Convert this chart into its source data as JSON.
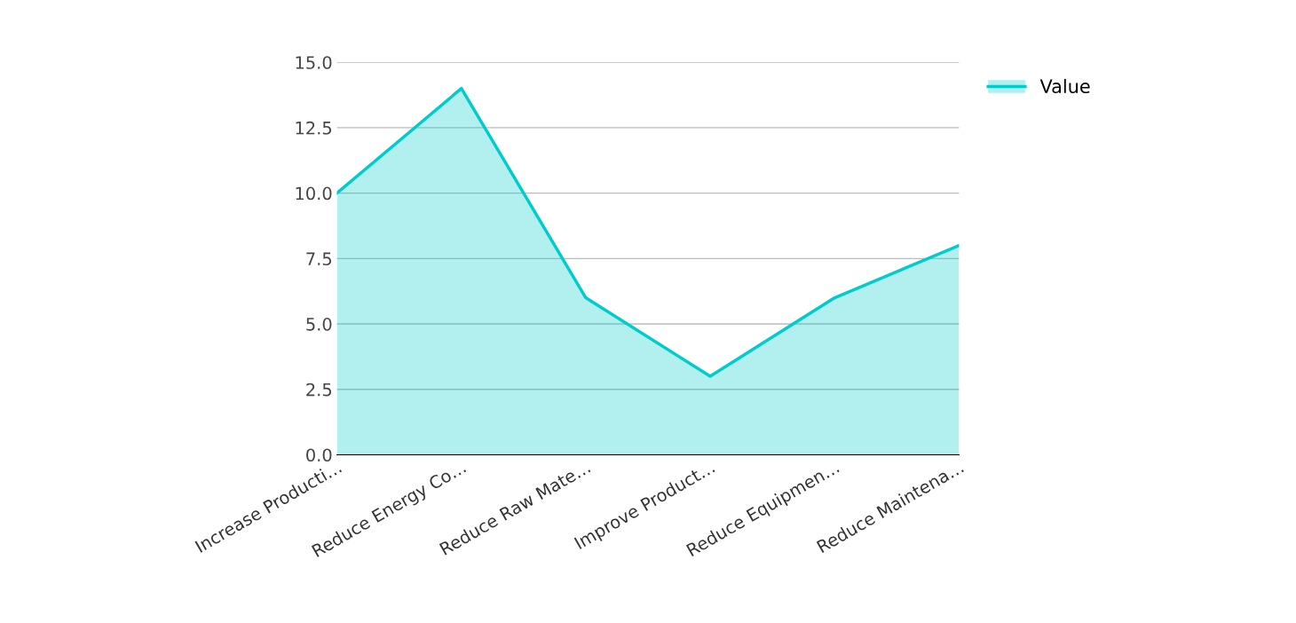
{
  "chart_data": {
    "type": "area",
    "categories": [
      "Increase Producti…",
      "Reduce Energy Co…",
      "Reduce Raw Mate…",
      "Improve Product…",
      "Reduce Equipmen…",
      "Reduce Maintena…"
    ],
    "series": [
      {
        "name": "Value",
        "color": "#00cccc",
        "values": [
          10,
          14,
          6,
          3,
          6,
          8
        ]
      }
    ],
    "ylim": [
      0,
      15
    ],
    "yticks": [
      {
        "value": 0,
        "label": "0.0"
      },
      {
        "value": 2.5,
        "label": "2.5"
      },
      {
        "value": 5,
        "label": "5.0"
      },
      {
        "value": 7.5,
        "label": "7.5"
      },
      {
        "value": 10,
        "label": "10.0"
      },
      {
        "value": 12.5,
        "label": "12.5"
      },
      {
        "value": 15,
        "label": "15.0"
      }
    ],
    "grid": "y",
    "legend": "top right",
    "marker": "none"
  }
}
